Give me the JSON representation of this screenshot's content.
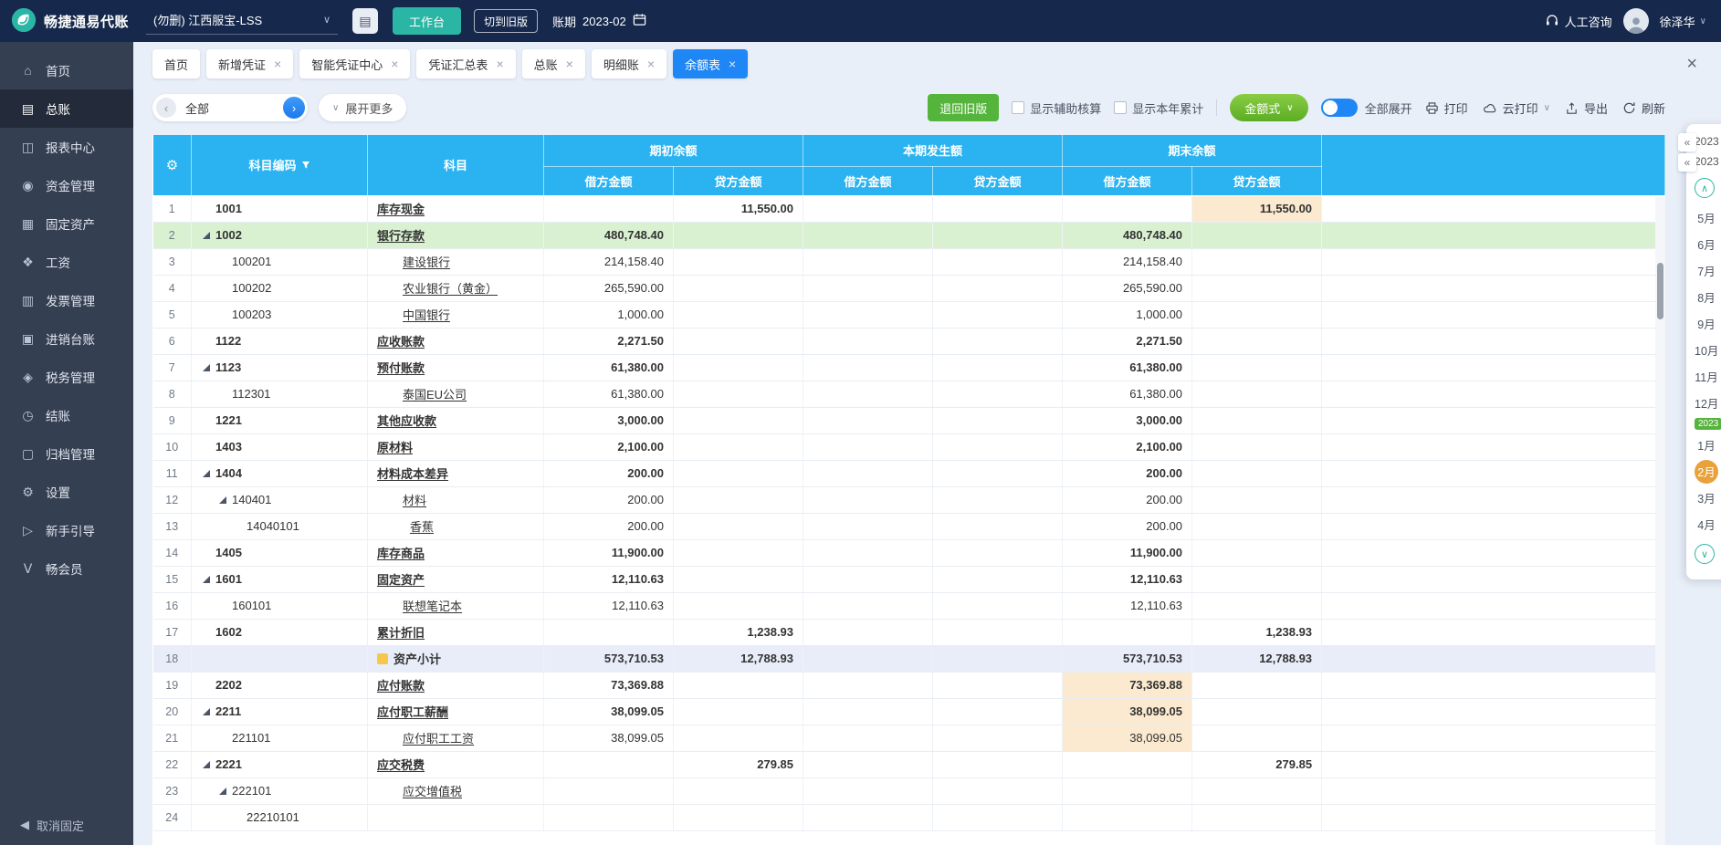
{
  "topbar": {
    "logo_text": "畅捷通易代账",
    "company_selector": "(勿删) 江西服宝-LSS",
    "workbench_button": "工作台",
    "switch_old_button": "切到旧版",
    "period_label": "账期",
    "period_value": "2023-02",
    "support_label": "人工咨询",
    "username": "徐泽华",
    "icons": [
      "logo-icon",
      "document-icon",
      "calendar-icon",
      "headset-icon",
      "avatar"
    ]
  },
  "sidebar": {
    "items": [
      {
        "label": "首页",
        "icon": "home-icon",
        "active": false
      },
      {
        "label": "总账",
        "icon": "ledger-icon",
        "active": true
      },
      {
        "label": "报表中心",
        "icon": "report-icon",
        "active": false
      },
      {
        "label": "资金管理",
        "icon": "funds-icon",
        "active": false
      },
      {
        "label": "固定资产",
        "icon": "fixed-asset-icon",
        "active": false
      },
      {
        "label": "工资",
        "icon": "salary-icon",
        "active": false
      },
      {
        "label": "发票管理",
        "icon": "invoice-icon",
        "active": false
      },
      {
        "label": "进销台账",
        "icon": "inventory-icon",
        "active": false
      },
      {
        "label": "税务管理",
        "icon": "tax-icon",
        "active": false
      },
      {
        "label": "结账",
        "icon": "closing-icon",
        "active": false
      },
      {
        "label": "归档管理",
        "icon": "archive-icon",
        "active": false
      },
      {
        "label": "设置",
        "icon": "settings-icon",
        "active": false
      },
      {
        "label": "新手引导",
        "icon": "guide-icon",
        "active": false
      },
      {
        "label": "畅会员",
        "icon": "member-icon",
        "active": false
      }
    ],
    "footer": "取消固定"
  },
  "tabs": [
    {
      "label": "首页",
      "closable": false,
      "active": false
    },
    {
      "label": "新增凭证",
      "closable": true,
      "active": false
    },
    {
      "label": "智能凭证中心",
      "closable": true,
      "active": false
    },
    {
      "label": "凭证汇总表",
      "closable": true,
      "active": false
    },
    {
      "label": "总账",
      "closable": true,
      "active": false
    },
    {
      "label": "明细账",
      "closable": true,
      "active": false
    },
    {
      "label": "余额表",
      "closable": true,
      "active": true
    }
  ],
  "toolbar": {
    "scope_label": "全部",
    "expand_more": "展开更多",
    "back_old_version": "退回旧版",
    "checkboxes": [
      {
        "label": "显示辅助核算",
        "checked": false
      },
      {
        "label": "显示本年累计",
        "checked": false
      }
    ],
    "amount_style": "金额式",
    "expand_all": {
      "label": "全部展开",
      "on": true
    },
    "actions": [
      {
        "label": "打印",
        "icon": "printer-icon",
        "caret": false
      },
      {
        "label": "云打印",
        "icon": "cloud-icon",
        "caret": true
      },
      {
        "label": "导出",
        "icon": "export-icon",
        "caret": false
      },
      {
        "label": "刷新",
        "icon": "refresh-icon",
        "caret": false
      }
    ]
  },
  "table": {
    "code_header": "科目编码",
    "subject_header": "科目",
    "groups": [
      "期初余额",
      "本期发生额",
      "期末余额"
    ],
    "sub_debit": "借方金额",
    "sub_credit": "贷方金额",
    "rows": [
      {
        "num": 1,
        "code": "1001",
        "level": 0,
        "tree": false,
        "bold": true,
        "underline": true,
        "icon": false,
        "bg": "",
        "name": "库存现金",
        "v": [
          "",
          "11,550.00",
          "",
          "",
          "",
          "11,550.00"
        ],
        "hl": [
          5
        ]
      },
      {
        "num": 2,
        "code": "1002",
        "level": 0,
        "tree": true,
        "bold": true,
        "underline": true,
        "icon": false,
        "bg": "green",
        "name": "银行存款",
        "v": [
          "480,748.40",
          "",
          "",
          "",
          "480,748.40",
          ""
        ],
        "hl": []
      },
      {
        "num": 3,
        "code": "100201",
        "level": 1,
        "tree": false,
        "bold": false,
        "underline": true,
        "icon": false,
        "bg": "",
        "name": "建设银行",
        "v": [
          "214,158.40",
          "",
          "",
          "",
          "214,158.40",
          ""
        ],
        "hl": []
      },
      {
        "num": 4,
        "code": "100202",
        "level": 1,
        "tree": false,
        "bold": false,
        "underline": true,
        "icon": false,
        "bg": "",
        "name": "农业银行（黄金）",
        "v": [
          "265,590.00",
          "",
          "",
          "",
          "265,590.00",
          ""
        ],
        "hl": []
      },
      {
        "num": 5,
        "code": "100203",
        "level": 1,
        "tree": false,
        "bold": false,
        "underline": true,
        "icon": false,
        "bg": "",
        "name": "中国银行",
        "v": [
          "1,000.00",
          "",
          "",
          "",
          "1,000.00",
          ""
        ],
        "hl": []
      },
      {
        "num": 6,
        "code": "1122",
        "level": 0,
        "tree": false,
        "bold": true,
        "underline": true,
        "icon": false,
        "bg": "",
        "name": "应收账款",
        "v": [
          "2,271.50",
          "",
          "",
          "",
          "2,271.50",
          ""
        ],
        "hl": []
      },
      {
        "num": 7,
        "code": "1123",
        "level": 0,
        "tree": true,
        "bold": true,
        "underline": true,
        "icon": false,
        "bg": "",
        "name": "预付账款",
        "v": [
          "61,380.00",
          "",
          "",
          "",
          "61,380.00",
          ""
        ],
        "hl": []
      },
      {
        "num": 8,
        "code": "112301",
        "level": 1,
        "tree": false,
        "bold": false,
        "underline": true,
        "icon": false,
        "bg": "",
        "name": "泰国EU公司",
        "v": [
          "61,380.00",
          "",
          "",
          "",
          "61,380.00",
          ""
        ],
        "hl": []
      },
      {
        "num": 9,
        "code": "1221",
        "level": 0,
        "tree": false,
        "bold": true,
        "underline": true,
        "icon": false,
        "bg": "",
        "name": "其他应收款",
        "v": [
          "3,000.00",
          "",
          "",
          "",
          "3,000.00",
          ""
        ],
        "hl": []
      },
      {
        "num": 10,
        "code": "1403",
        "level": 0,
        "tree": false,
        "bold": true,
        "underline": true,
        "icon": false,
        "bg": "",
        "name": "原材料",
        "v": [
          "2,100.00",
          "",
          "",
          "",
          "2,100.00",
          ""
        ],
        "hl": []
      },
      {
        "num": 11,
        "code": "1404",
        "level": 0,
        "tree": true,
        "bold": true,
        "underline": true,
        "icon": false,
        "bg": "",
        "name": "材料成本差异",
        "v": [
          "200.00",
          "",
          "",
          "",
          "200.00",
          ""
        ],
        "hl": []
      },
      {
        "num": 12,
        "code": "140401",
        "level": 1,
        "tree": true,
        "bold": false,
        "underline": true,
        "icon": false,
        "bg": "",
        "name": "材料",
        "v": [
          "200.00",
          "",
          "",
          "",
          "200.00",
          ""
        ],
        "hl": []
      },
      {
        "num": 13,
        "code": "14040101",
        "level": 2,
        "tree": false,
        "bold": false,
        "underline": true,
        "icon": false,
        "bg": "",
        "name": "香蕉",
        "v": [
          "200.00",
          "",
          "",
          "",
          "200.00",
          ""
        ],
        "hl": []
      },
      {
        "num": 14,
        "code": "1405",
        "level": 0,
        "tree": false,
        "bold": true,
        "underline": true,
        "icon": false,
        "bg": "",
        "name": "库存商品",
        "v": [
          "11,900.00",
          "",
          "",
          "",
          "11,900.00",
          ""
        ],
        "hl": []
      },
      {
        "num": 15,
        "code": "1601",
        "level": 0,
        "tree": true,
        "bold": true,
        "underline": true,
        "icon": false,
        "bg": "",
        "name": "固定资产",
        "v": [
          "12,110.63",
          "",
          "",
          "",
          "12,110.63",
          ""
        ],
        "hl": []
      },
      {
        "num": 16,
        "code": "160101",
        "level": 1,
        "tree": false,
        "bold": false,
        "underline": true,
        "icon": false,
        "bg": "",
        "name": "联想笔记本",
        "v": [
          "12,110.63",
          "",
          "",
          "",
          "12,110.63",
          ""
        ],
        "hl": []
      },
      {
        "num": 17,
        "code": "1602",
        "level": 0,
        "tree": false,
        "bold": true,
        "underline": true,
        "icon": false,
        "bg": "",
        "name": "累计折旧",
        "v": [
          "",
          "1,238.93",
          "",
          "",
          "",
          "1,238.93"
        ],
        "hl": []
      },
      {
        "num": 18,
        "code": "",
        "level": 0,
        "tree": false,
        "bold": true,
        "underline": false,
        "icon": true,
        "bg": "lav",
        "name": "资产小计",
        "v": [
          "573,710.53",
          "12,788.93",
          "",
          "",
          "573,710.53",
          "12,788.93"
        ],
        "hl": []
      },
      {
        "num": 19,
        "code": "2202",
        "level": 0,
        "tree": false,
        "bold": true,
        "underline": true,
        "icon": false,
        "bg": "",
        "name": "应付账款",
        "v": [
          "73,369.88",
          "",
          "",
          "",
          "73,369.88",
          ""
        ],
        "hl": [
          4
        ]
      },
      {
        "num": 20,
        "code": "2211",
        "level": 0,
        "tree": true,
        "bold": true,
        "underline": true,
        "icon": false,
        "bg": "",
        "name": "应付职工薪酬",
        "v": [
          "38,099.05",
          "",
          "",
          "",
          "38,099.05",
          ""
        ],
        "hl": [
          4
        ]
      },
      {
        "num": 21,
        "code": "221101",
        "level": 1,
        "tree": false,
        "bold": false,
        "underline": true,
        "icon": false,
        "bg": "",
        "name": "应付职工工资",
        "v": [
          "38,099.05",
          "",
          "",
          "",
          "38,099.05",
          ""
        ],
        "hl": [
          4
        ]
      },
      {
        "num": 22,
        "code": "2221",
        "level": 0,
        "tree": true,
        "bold": true,
        "underline": true,
        "icon": false,
        "bg": "",
        "name": "应交税费",
        "v": [
          "",
          "279.85",
          "",
          "",
          "",
          "279.85"
        ],
        "hl": []
      },
      {
        "num": 23,
        "code": "222101",
        "level": 1,
        "tree": true,
        "bold": false,
        "underline": true,
        "icon": false,
        "bg": "",
        "name": "应交增值税",
        "v": [
          "",
          "",
          "",
          "",
          "",
          ""
        ],
        "hl": []
      },
      {
        "num": 24,
        "code": "22210101",
        "level": 2,
        "tree": false,
        "bold": false,
        "underline": false,
        "icon": false,
        "bg": "",
        "name": "",
        "v": [
          "",
          "",
          "",
          "",
          "",
          ""
        ],
        "hl": []
      }
    ]
  },
  "month_panel": {
    "years": [
      "2023",
      "2023"
    ],
    "months": [
      "5月",
      "6月",
      "7月",
      "8月",
      "9月",
      "10月",
      "11月",
      "12月",
      "1月",
      "2月",
      "3月",
      "4月"
    ],
    "badge": "2023",
    "badge_before": "1月",
    "active": "2月"
  }
}
